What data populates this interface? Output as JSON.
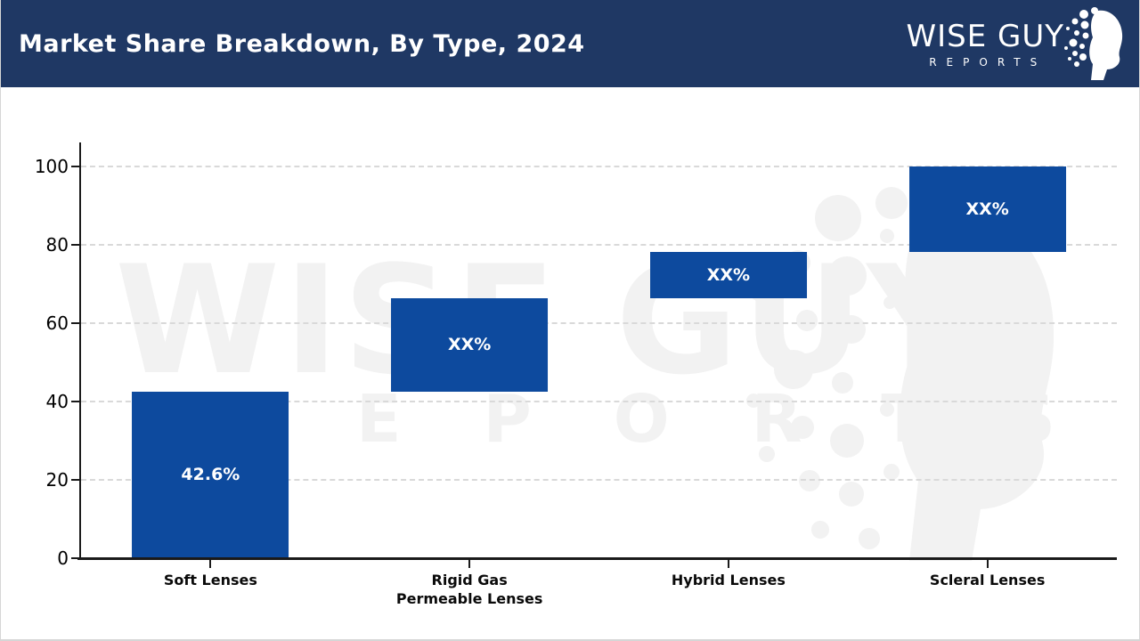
{
  "header": {
    "title": "Market Share Breakdown, By Type, 2024",
    "bg_color": "#1f3864",
    "logo": {
      "line1": "WISE GUY",
      "line2": "REPORTS"
    }
  },
  "watermark": {
    "line1": "WISE GUY",
    "line2": "REPORTS"
  },
  "chart_data": {
    "type": "bar",
    "subtype": "waterfall",
    "title": "Market Share Breakdown, By Type, 2024",
    "categories": [
      "Soft Lenses",
      "Rigid Gas Permeable Lenses",
      "Hybrid Lenses",
      "Scleral Lenses"
    ],
    "category_label_lines": [
      [
        "Soft Lenses"
      ],
      [
        "Rigid Gas",
        "Permeable Lenses"
      ],
      [
        "Hybrid Lenses"
      ],
      [
        "Scleral Lenses"
      ]
    ],
    "series": [
      {
        "name": "Market share (%)",
        "segments": [
          {
            "category": "Soft Lenses",
            "start": 0,
            "end": 42.6,
            "label": "42.6%"
          },
          {
            "category": "Rigid Gas Permeable Lenses",
            "start": 42.6,
            "end": 66.3,
            "label": "XX%"
          },
          {
            "category": "Hybrid Lenses",
            "start": 66.3,
            "end": 78.1,
            "label": "XX%"
          },
          {
            "category": "Scleral Lenses",
            "start": 78.1,
            "end": 100,
            "label": "XX%"
          }
        ]
      }
    ],
    "ylim": [
      0,
      100
    ],
    "yticks": [
      0,
      20,
      40,
      60,
      80,
      100
    ],
    "xlabel": "",
    "ylabel": "",
    "grid": "horizontal-dashed",
    "legend": "none",
    "bar_color": "#0d4a9e",
    "bar_label_color": "#ffffff"
  }
}
